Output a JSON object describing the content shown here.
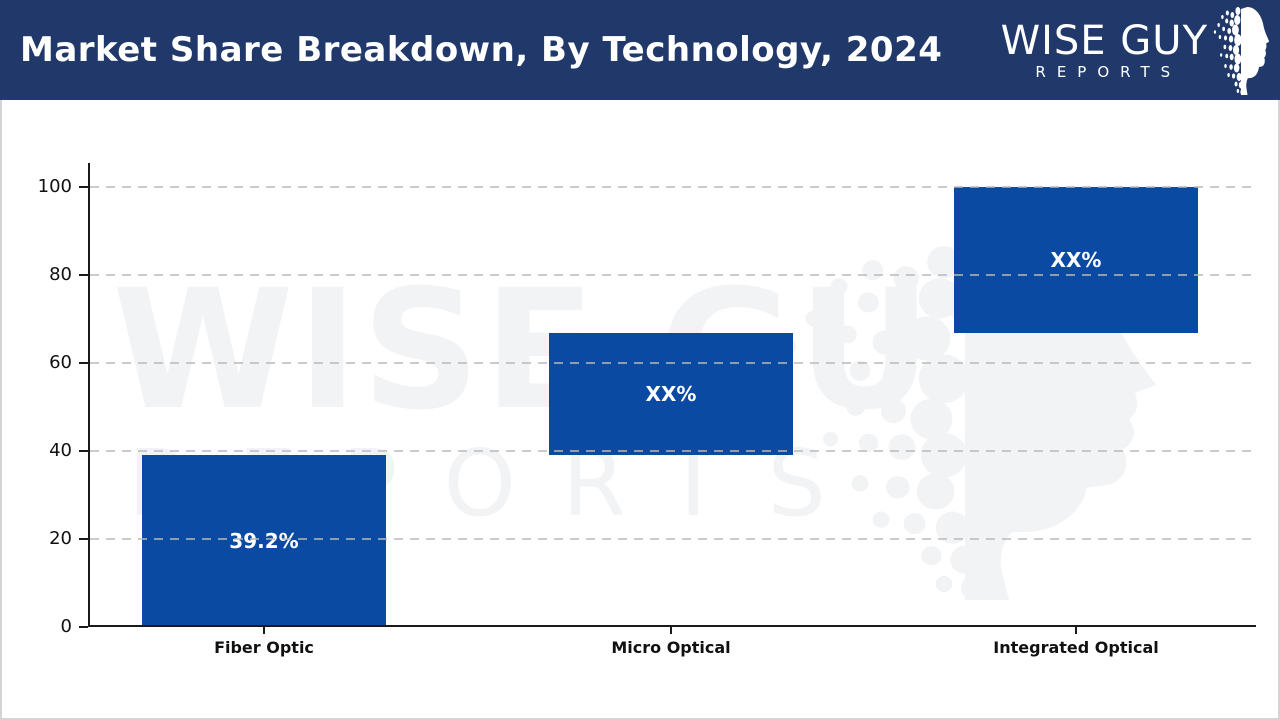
{
  "header": {
    "title": "Market Share Breakdown, By Technology, 2024",
    "logo": {
      "line1": "WISE GUY",
      "line2": "REPORTS"
    }
  },
  "watermark": {
    "line1": "WISE GUY",
    "line2": "REPORTS"
  },
  "chart_data": {
    "type": "bar",
    "subtype": "waterfall-stacked-breakdown",
    "title": "Market Share Breakdown, By Technology, 2024",
    "categories": [
      "Fiber Optic",
      "Micro Optical",
      "Integrated Optical"
    ],
    "segments": [
      {
        "category": "Fiber Optic",
        "start": 0,
        "end": 39.2,
        "label": "39.2%"
      },
      {
        "category": "Micro Optical",
        "start": 39.2,
        "end": 66.8,
        "label": "XX%"
      },
      {
        "category": "Integrated Optical",
        "start": 66.8,
        "end": 100,
        "label": "XX%"
      }
    ],
    "xlabel": "",
    "ylabel": "",
    "ylim": [
      0,
      100
    ],
    "yticks": [
      0,
      20,
      40,
      60,
      80,
      100
    ],
    "grid": "horizontal-dashed-over-bars",
    "legend": "none",
    "bar_color": "#0b4aa2",
    "label_color": "#ffffff"
  },
  "colors": {
    "header_bg": "#20396a",
    "title_text": "#ffffff",
    "axis": "#1a1a1a",
    "grid": "#c9c9c9",
    "watermark": "#f2f3f5",
    "page_border": "#d4d4d4"
  }
}
